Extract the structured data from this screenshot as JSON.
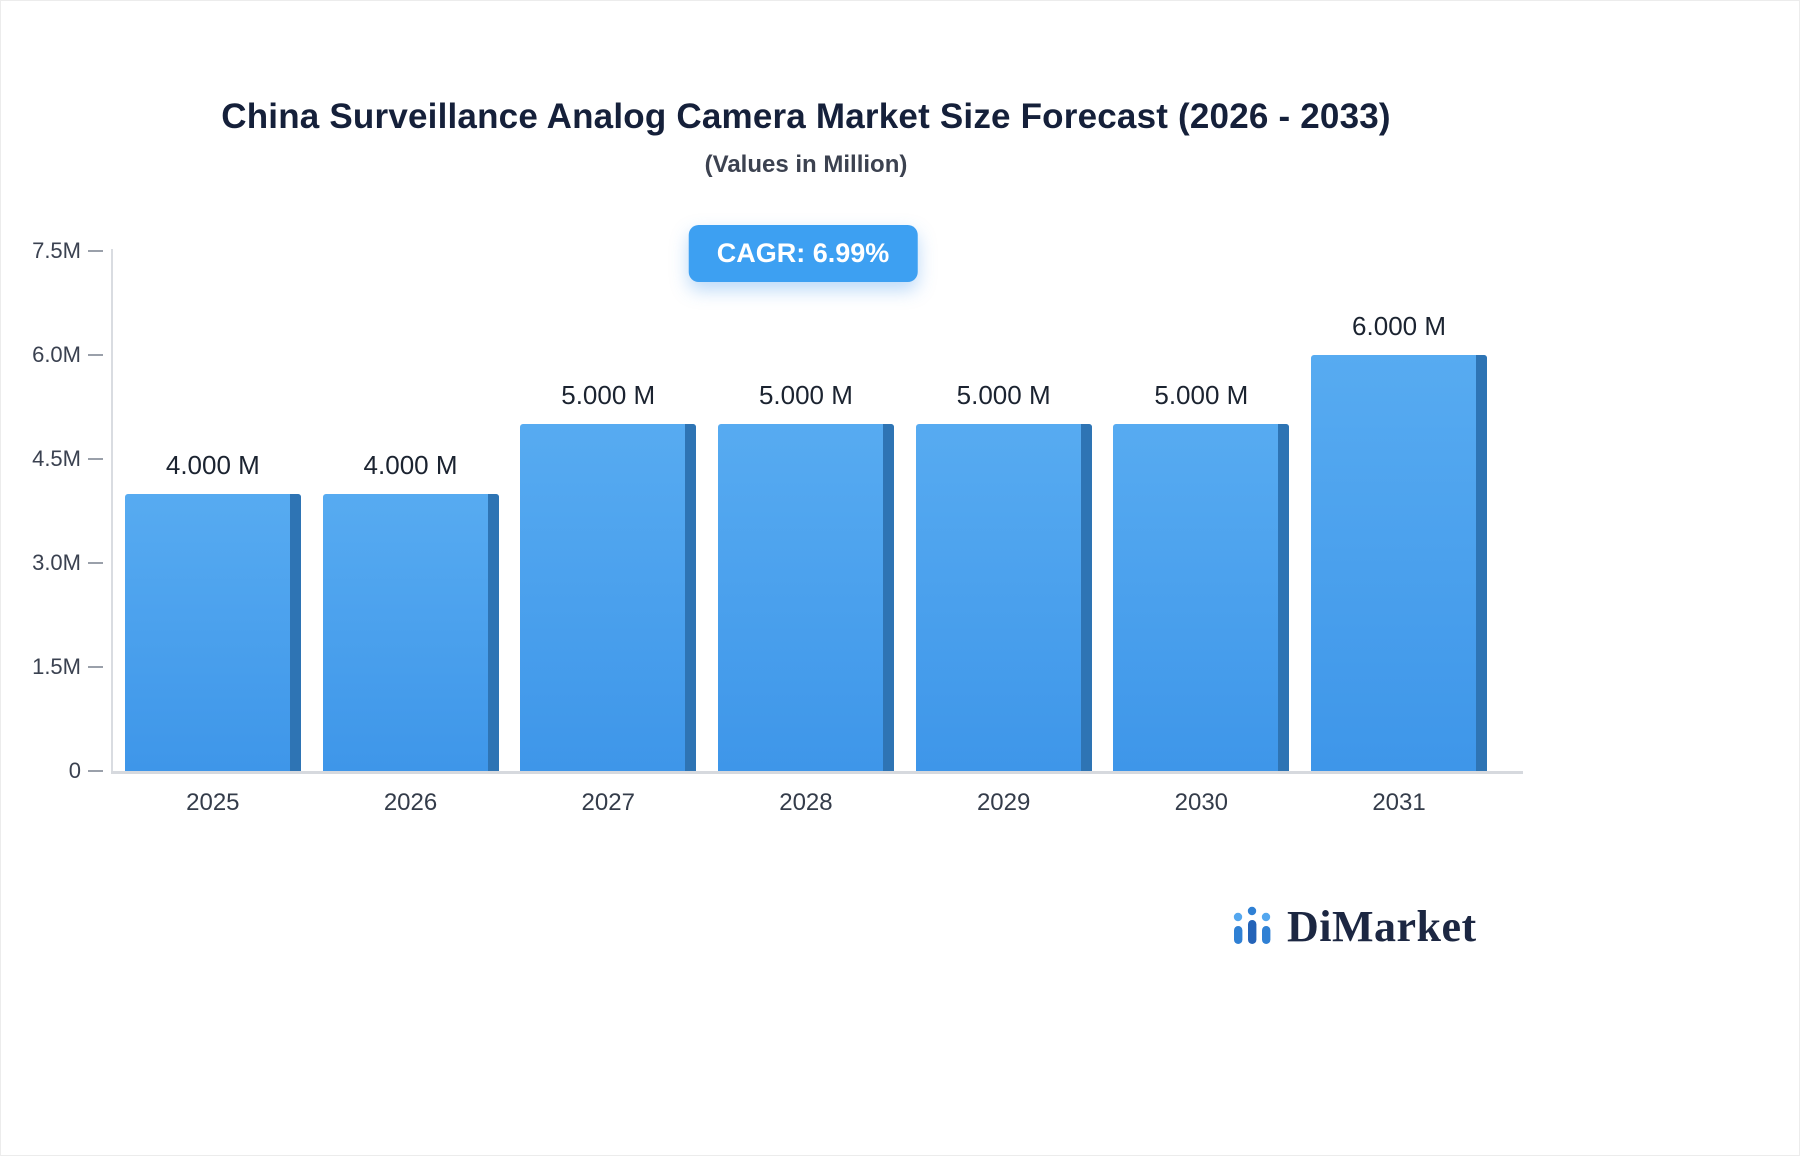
{
  "page": {
    "title": "China Surveillance Analog Camera Market Size Forecast (2026 - 2033)",
    "subtitle": "(Values in Million)",
    "cagr_badge": "CAGR: 6.99%"
  },
  "logo": {
    "text": "DiMarket"
  },
  "chart_data": {
    "type": "bar",
    "title": "China Surveillance Analog Camera Market Size Forecast (2026 - 2033)",
    "subtitle": "(Values in Million)",
    "unit": "Million",
    "cagr": "6.99%",
    "categories": [
      "2025",
      "2026",
      "2027",
      "2028",
      "2029",
      "2030",
      "2031"
    ],
    "values": [
      4.0,
      4.0,
      5.0,
      5.0,
      5.0,
      5.0,
      6.0
    ],
    "value_labels": [
      "4.000 M",
      "4.000 M",
      "5.000 M",
      "5.000 M",
      "5.000 M",
      "5.000 M",
      "6.000 M"
    ],
    "ylim": [
      0,
      7.5
    ],
    "yticks": [
      {
        "value": 7.5,
        "label": "7.5M"
      },
      {
        "value": 6.0,
        "label": "6.0M"
      },
      {
        "value": 4.5,
        "label": "4.5M"
      },
      {
        "value": 3.0,
        "label": "3.0M"
      },
      {
        "value": 1.5,
        "label": "1.5M"
      },
      {
        "value": 0,
        "label": "0"
      }
    ],
    "grid": false,
    "legend": false,
    "bar_color": "#42a0ee",
    "bar_edge_color": "#2e74b4",
    "badge_color": "#3da0f2"
  }
}
